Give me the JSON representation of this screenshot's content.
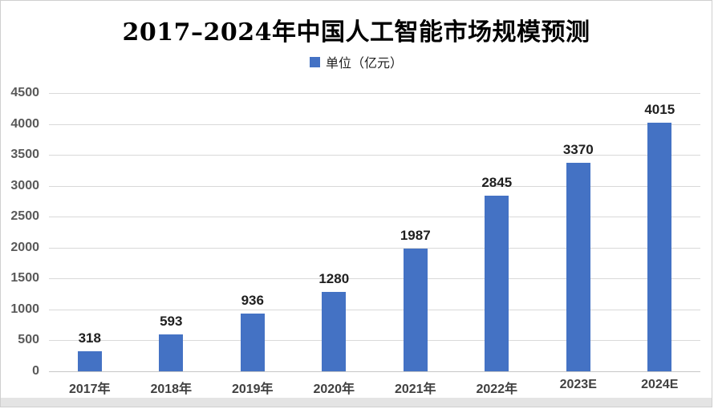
{
  "chart_data": {
    "type": "bar",
    "title": "2017–2024年中国人工智能市场规模预测",
    "legend": "单位（亿元）",
    "legend_position": "top-center",
    "categories": [
      "2017年",
      "2018年",
      "2019年",
      "2020年",
      "2021年",
      "2022年",
      "2023E",
      "2024E"
    ],
    "values": [
      318,
      593,
      936,
      1280,
      1987,
      2845,
      3370,
      4015
    ],
    "data_labels_shown": true,
    "xlabel": "",
    "ylabel": "",
    "ylim": [
      0,
      4500
    ],
    "ytick_step": 500,
    "yticks": [
      0,
      500,
      1000,
      1500,
      2000,
      2500,
      3000,
      3500,
      4000,
      4500
    ],
    "grid": true,
    "colors": {
      "bar": "#4472C4",
      "gridline": "#d9d9d9",
      "baseline": "#c6c6c6",
      "y_tick_label": "#595959",
      "x_tick_label": "#404040",
      "value_label": "#1f1f1f",
      "title": "#000000",
      "background": "#ffffff",
      "frame_border": "#cfcfcf",
      "bottom_band": "#e4e4e4"
    }
  }
}
